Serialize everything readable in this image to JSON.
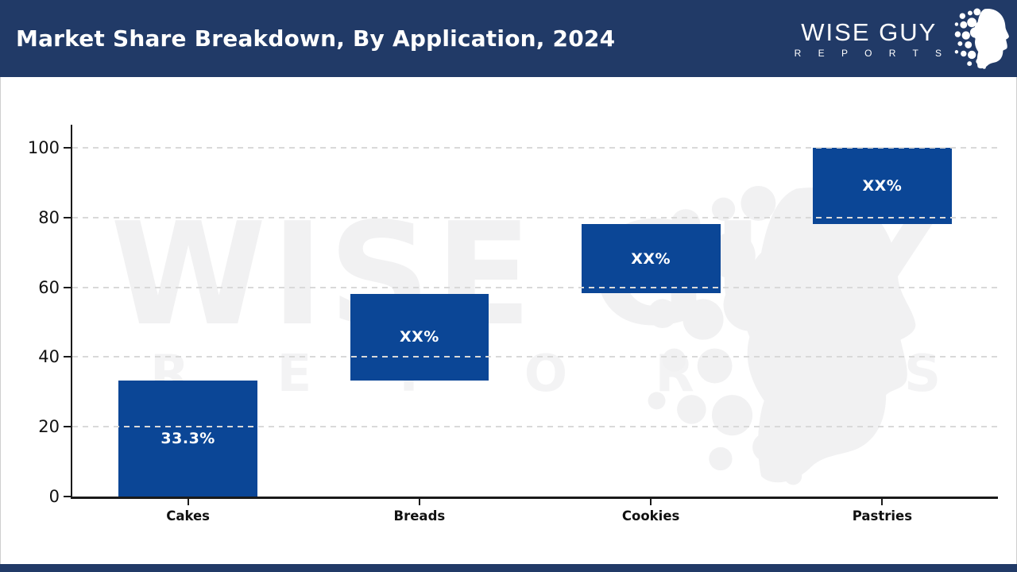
{
  "header": {
    "title": "Market Share Breakdown, By Application, 2024",
    "logo": {
      "line1": "WISE GUY",
      "line2": "R E P O R T S"
    }
  },
  "watermark": {
    "line1": "WISE GUY",
    "line2": "R E P O R T S"
  },
  "colors": {
    "header_bg": "#213a67",
    "bar": "#0b4696",
    "grid": "#d9d9d9",
    "bar_label": "#ffffff",
    "watermark": "#f1f1f2"
  },
  "chart_data": {
    "type": "bar",
    "subtype": "waterfall",
    "title": "Market Share Breakdown, By Application, 2024",
    "categories": [
      "Cakes",
      "Breads",
      "Cookies",
      "Pastries"
    ],
    "segments": [
      {
        "category": "Cakes",
        "start": 0,
        "end": 33.3,
        "label": "33.3%"
      },
      {
        "category": "Breads",
        "start": 33.3,
        "end": 58.2,
        "label": "XX%"
      },
      {
        "category": "Cookies",
        "start": 58.2,
        "end": 78.2,
        "label": "XX%"
      },
      {
        "category": "Pastries",
        "start": 78.2,
        "end": 100,
        "label": "XX%"
      }
    ],
    "xlabel": "",
    "ylabel": "",
    "yticks": [
      0,
      20,
      40,
      60,
      80,
      100
    ],
    "ylim": [
      0,
      107
    ],
    "grid": "horizontal-dashed",
    "legend": "none",
    "bar_color": "#0b4696"
  }
}
